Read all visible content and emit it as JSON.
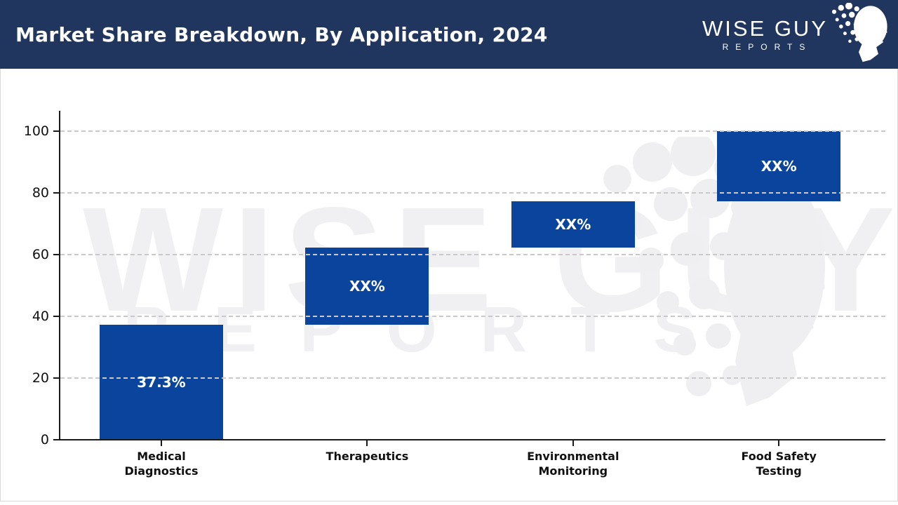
{
  "header": {
    "title": "Market Share Breakdown, By Application, 2024",
    "logo": {
      "name": "WISE GUY",
      "sub": "REPORTS"
    }
  },
  "watermark": {
    "line1": "WISE GUY",
    "line2": "REPORTS"
  },
  "colors": {
    "header_bg": "#21365f",
    "bar": "#0a449c",
    "grid": "#c9c9c9",
    "axis": "#1a1a1a",
    "value_label": "#ffffff",
    "watermark": "#f0f0f3"
  },
  "chart_data": {
    "type": "bar",
    "subtype": "waterfall",
    "title": "Market Share Breakdown, By Application, 2024",
    "xlabel": "",
    "ylabel": "",
    "ylim": [
      0,
      107
    ],
    "yticks": [
      0,
      20,
      40,
      60,
      80,
      100
    ],
    "grid": "dashed-horizontal, drawn above bars",
    "legend": "none",
    "categories": [
      "Medical Diagnostics",
      "Therapeutics",
      "Environmental Monitoring",
      "Food Safety Testing"
    ],
    "category_lines": [
      [
        "Medical",
        "Diagnostics"
      ],
      [
        "Therapeutics"
      ],
      [
        "Environmental",
        "Monitoring"
      ],
      [
        "Food Safety",
        "Testing"
      ]
    ],
    "segments": [
      {
        "category": "Medical Diagnostics",
        "start": 0,
        "end": 37.3,
        "label": "37.3%"
      },
      {
        "category": "Therapeutics",
        "start": 37.3,
        "end": 62.3,
        "label": "XX%"
      },
      {
        "category": "Environmental Monitoring",
        "start": 62.3,
        "end": 77.3,
        "label": "XX%"
      },
      {
        "category": "Food Safety Testing",
        "start": 77.3,
        "end": 100,
        "label": "XX%"
      }
    ]
  }
}
